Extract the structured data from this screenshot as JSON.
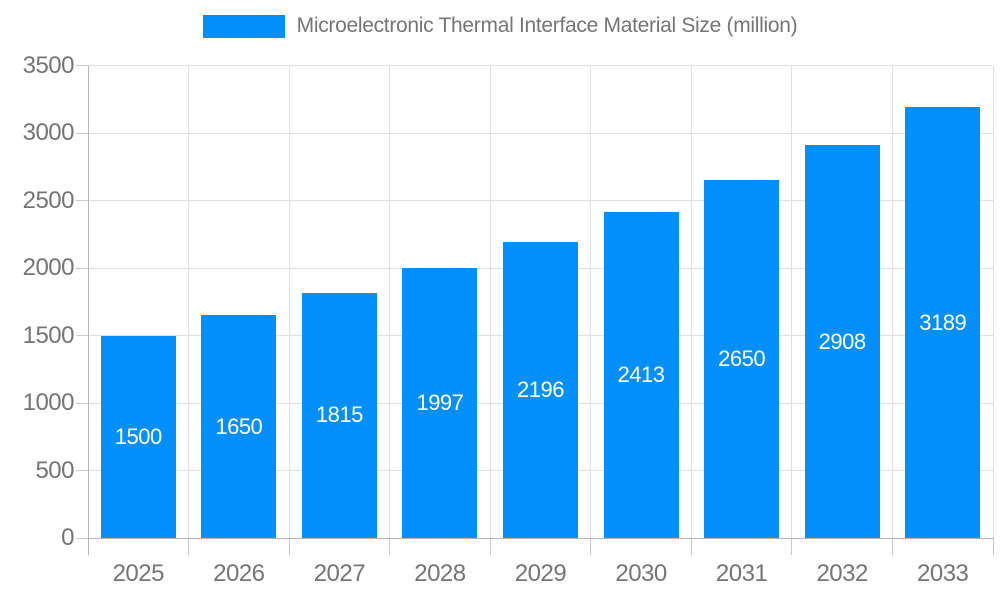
{
  "legend": {
    "label": "Microelectronic Thermal Interface Material Size (million)",
    "swatch_color": "#008ffb"
  },
  "chart_data": {
    "type": "bar",
    "title": "Microelectronic Thermal Interface Material Size (million)",
    "categories": [
      "2025",
      "2026",
      "2027",
      "2028",
      "2029",
      "2030",
      "2031",
      "2032",
      "2033"
    ],
    "series": [
      {
        "name": "Microelectronic Thermal Interface Material Size (million)",
        "values": [
          1500,
          1650,
          1815,
          1997,
          2196,
          2413,
          2650,
          2908,
          3189
        ]
      }
    ],
    "bar_labels": [
      "1500",
      "1650",
      "1815",
      "1997",
      "2196",
      "2413",
      "2650",
      "2908",
      "3189"
    ],
    "xlabel": "",
    "ylabel": "",
    "ylim": [
      0,
      3500
    ],
    "yticks": [
      0,
      500,
      1000,
      1500,
      2000,
      2500,
      3000,
      3500
    ],
    "grid": true,
    "legend_position": "top",
    "colors": {
      "bar": "#008ffb",
      "bar_label": "#ffffff",
      "axis_text": "#757575",
      "grid_line": "#e0e0e0",
      "axis_line": "#b6b6b6",
      "tick_mark": "#c9c9c9",
      "background": "#ffffff"
    }
  }
}
